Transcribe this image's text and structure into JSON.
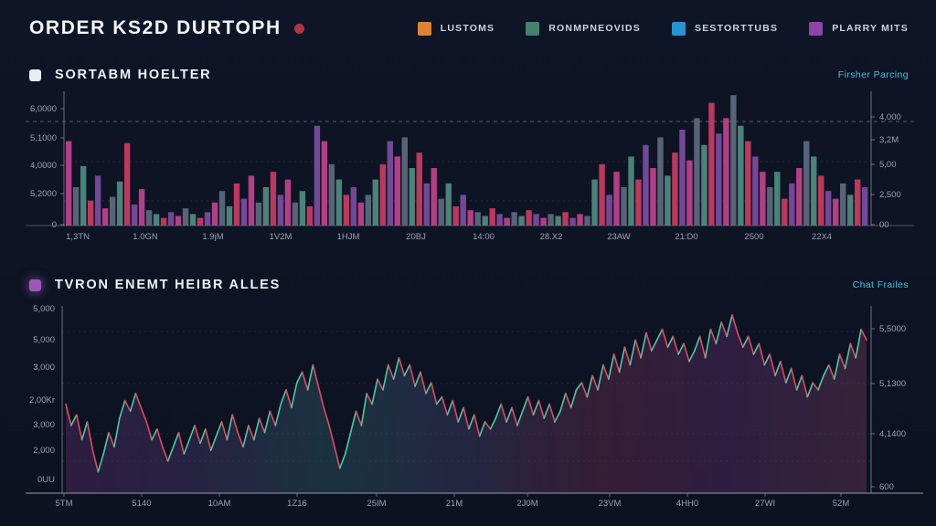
{
  "header": {
    "title": "ORDER KS2D DURTOPH",
    "status_dot_color": "#b23442"
  },
  "legend": {
    "items": [
      {
        "label": "LUSTOMS",
        "color": "#de8234",
        "icon": "orange-square"
      },
      {
        "label": "RONMPNEOVIDS",
        "color": "#46806f",
        "icon": "teal-square"
      },
      {
        "label": "SESTORTTUBS",
        "color": "#2496d2",
        "icon": "blue-square"
      },
      {
        "label": "PLARRY MITS",
        "color": "#8e44a8",
        "icon": "purple-square"
      }
    ]
  },
  "sections": [
    {
      "title": "SORTABM HOELTER",
      "bullet_color": "#e8ecf2",
      "link": "Firsher Parcing"
    },
    {
      "title": "TVRON ENEMT HEIBR ALLES",
      "bullet_color": "#9b59b5",
      "link": "Chat Frailes"
    }
  ],
  "chart_data": [
    {
      "type": "bar",
      "title": "SORTABM HOELTER",
      "ylabel": "",
      "xlabel": "",
      "ylim": [
        0,
        7000
      ],
      "grid": "dashed-horizontal",
      "y_axis_left_labels": [
        "6,0000",
        "5,1000",
        "4,0000",
        "5,2000",
        "0"
      ],
      "y_axis_right_labels": [
        "4,000",
        "3,2M",
        "5,00",
        "2,500",
        "00"
      ],
      "x_labels": [
        "1,3TN",
        "1.0GN",
        "1.9jM",
        "1V2M",
        "1HJM",
        "20BJ",
        "14:00",
        "28.X2",
        "23AW",
        "21:D0",
        "2500",
        "22X4"
      ],
      "bar_colors": [
        "#c2428e",
        "#4f8d80",
        "#7b4ea3",
        "#5d6b80",
        "#cc3b64"
      ],
      "values": [
        4400,
        2000,
        3100,
        1300,
        2600,
        900,
        1500,
        2300,
        4300,
        1100,
        1900,
        800,
        600,
        400,
        700,
        500,
        900,
        600,
        400,
        700,
        1200,
        1800,
        1000,
        2200,
        1400,
        2600,
        1200,
        2000,
        2800,
        1600,
        2400,
        1200,
        1800,
        1000,
        5200,
        4400,
        3200,
        2400,
        1600,
        2000,
        1200,
        1600,
        2400,
        3200,
        4400,
        3600,
        4600,
        3000,
        3800,
        2200,
        3000,
        1400,
        2200,
        1000,
        1600,
        800,
        700,
        500,
        900,
        600,
        400,
        700,
        500,
        800,
        600,
        400,
        600,
        500,
        700,
        400,
        600,
        500,
        2400,
        3200,
        1600,
        2800,
        2000,
        3600,
        2400,
        4200,
        3000,
        4600,
        2600,
        3800,
        5000,
        3400,
        5600,
        4200,
        6400,
        4800,
        5600,
        6800,
        5200,
        4400,
        3600,
        2800,
        2000,
        2800,
        1400,
        2200,
        3000,
        4400,
        3600,
        2600,
        1800,
        1400,
        2200,
        1600,
        2400,
        2000
      ]
    },
    {
      "type": "line",
      "title": "TVRON ENEMT HEIBR ALLES",
      "ylabel": "",
      "xlabel": "",
      "ylim": [
        0,
        100
      ],
      "grid": "faint-dashed",
      "y_axis_left_labels": [
        "5,000",
        "5,000",
        "3,000",
        "2,00Kr",
        "3,000",
        "2,000",
        "0UU"
      ],
      "y_axis_right_labels": [
        "5,5000",
        "5,1300",
        "4,1400",
        "600"
      ],
      "x_labels": [
        "5TM",
        "5140",
        "10AM",
        "1Z16",
        "25IM",
        "21M",
        "2J0M",
        "23VM",
        "4HH0",
        "27WI",
        "52M"
      ],
      "up_color": "#4ec9a4",
      "down_color": "#e14a5e",
      "area_gradient": [
        "#5b2d6e",
        "#4a3a6e",
        "#2d5f6b",
        "#44406e",
        "#6e2d52",
        "#5e2d6e",
        "#6e3a5a"
      ],
      "values": [
        50,
        38,
        44,
        30,
        40,
        24,
        12,
        22,
        34,
        26,
        42,
        52,
        46,
        56,
        48,
        40,
        30,
        36,
        26,
        18,
        26,
        34,
        22,
        30,
        38,
        28,
        36,
        24,
        32,
        40,
        30,
        44,
        34,
        26,
        38,
        30,
        42,
        34,
        46,
        38,
        50,
        58,
        48,
        62,
        68,
        58,
        72,
        60,
        48,
        38,
        26,
        14,
        22,
        34,
        46,
        38,
        56,
        50,
        64,
        58,
        72,
        64,
        76,
        66,
        72,
        60,
        68,
        56,
        62,
        50,
        54,
        44,
        52,
        40,
        48,
        36,
        44,
        32,
        40,
        36,
        42,
        50,
        40,
        48,
        38,
        46,
        54,
        44,
        52,
        42,
        50,
        40,
        46,
        56,
        48,
        58,
        62,
        54,
        66,
        58,
        72,
        64,
        78,
        68,
        82,
        72,
        86,
        76,
        90,
        80,
        86,
        92,
        82,
        88,
        78,
        84,
        74,
        80,
        88,
        76,
        92,
        84,
        96,
        88,
        100,
        90,
        82,
        88,
        78,
        84,
        72,
        78,
        66,
        74,
        62,
        70,
        58,
        66,
        54,
        62,
        58,
        66,
        72,
        64,
        78,
        70,
        84,
        76,
        92,
        86
      ]
    }
  ]
}
